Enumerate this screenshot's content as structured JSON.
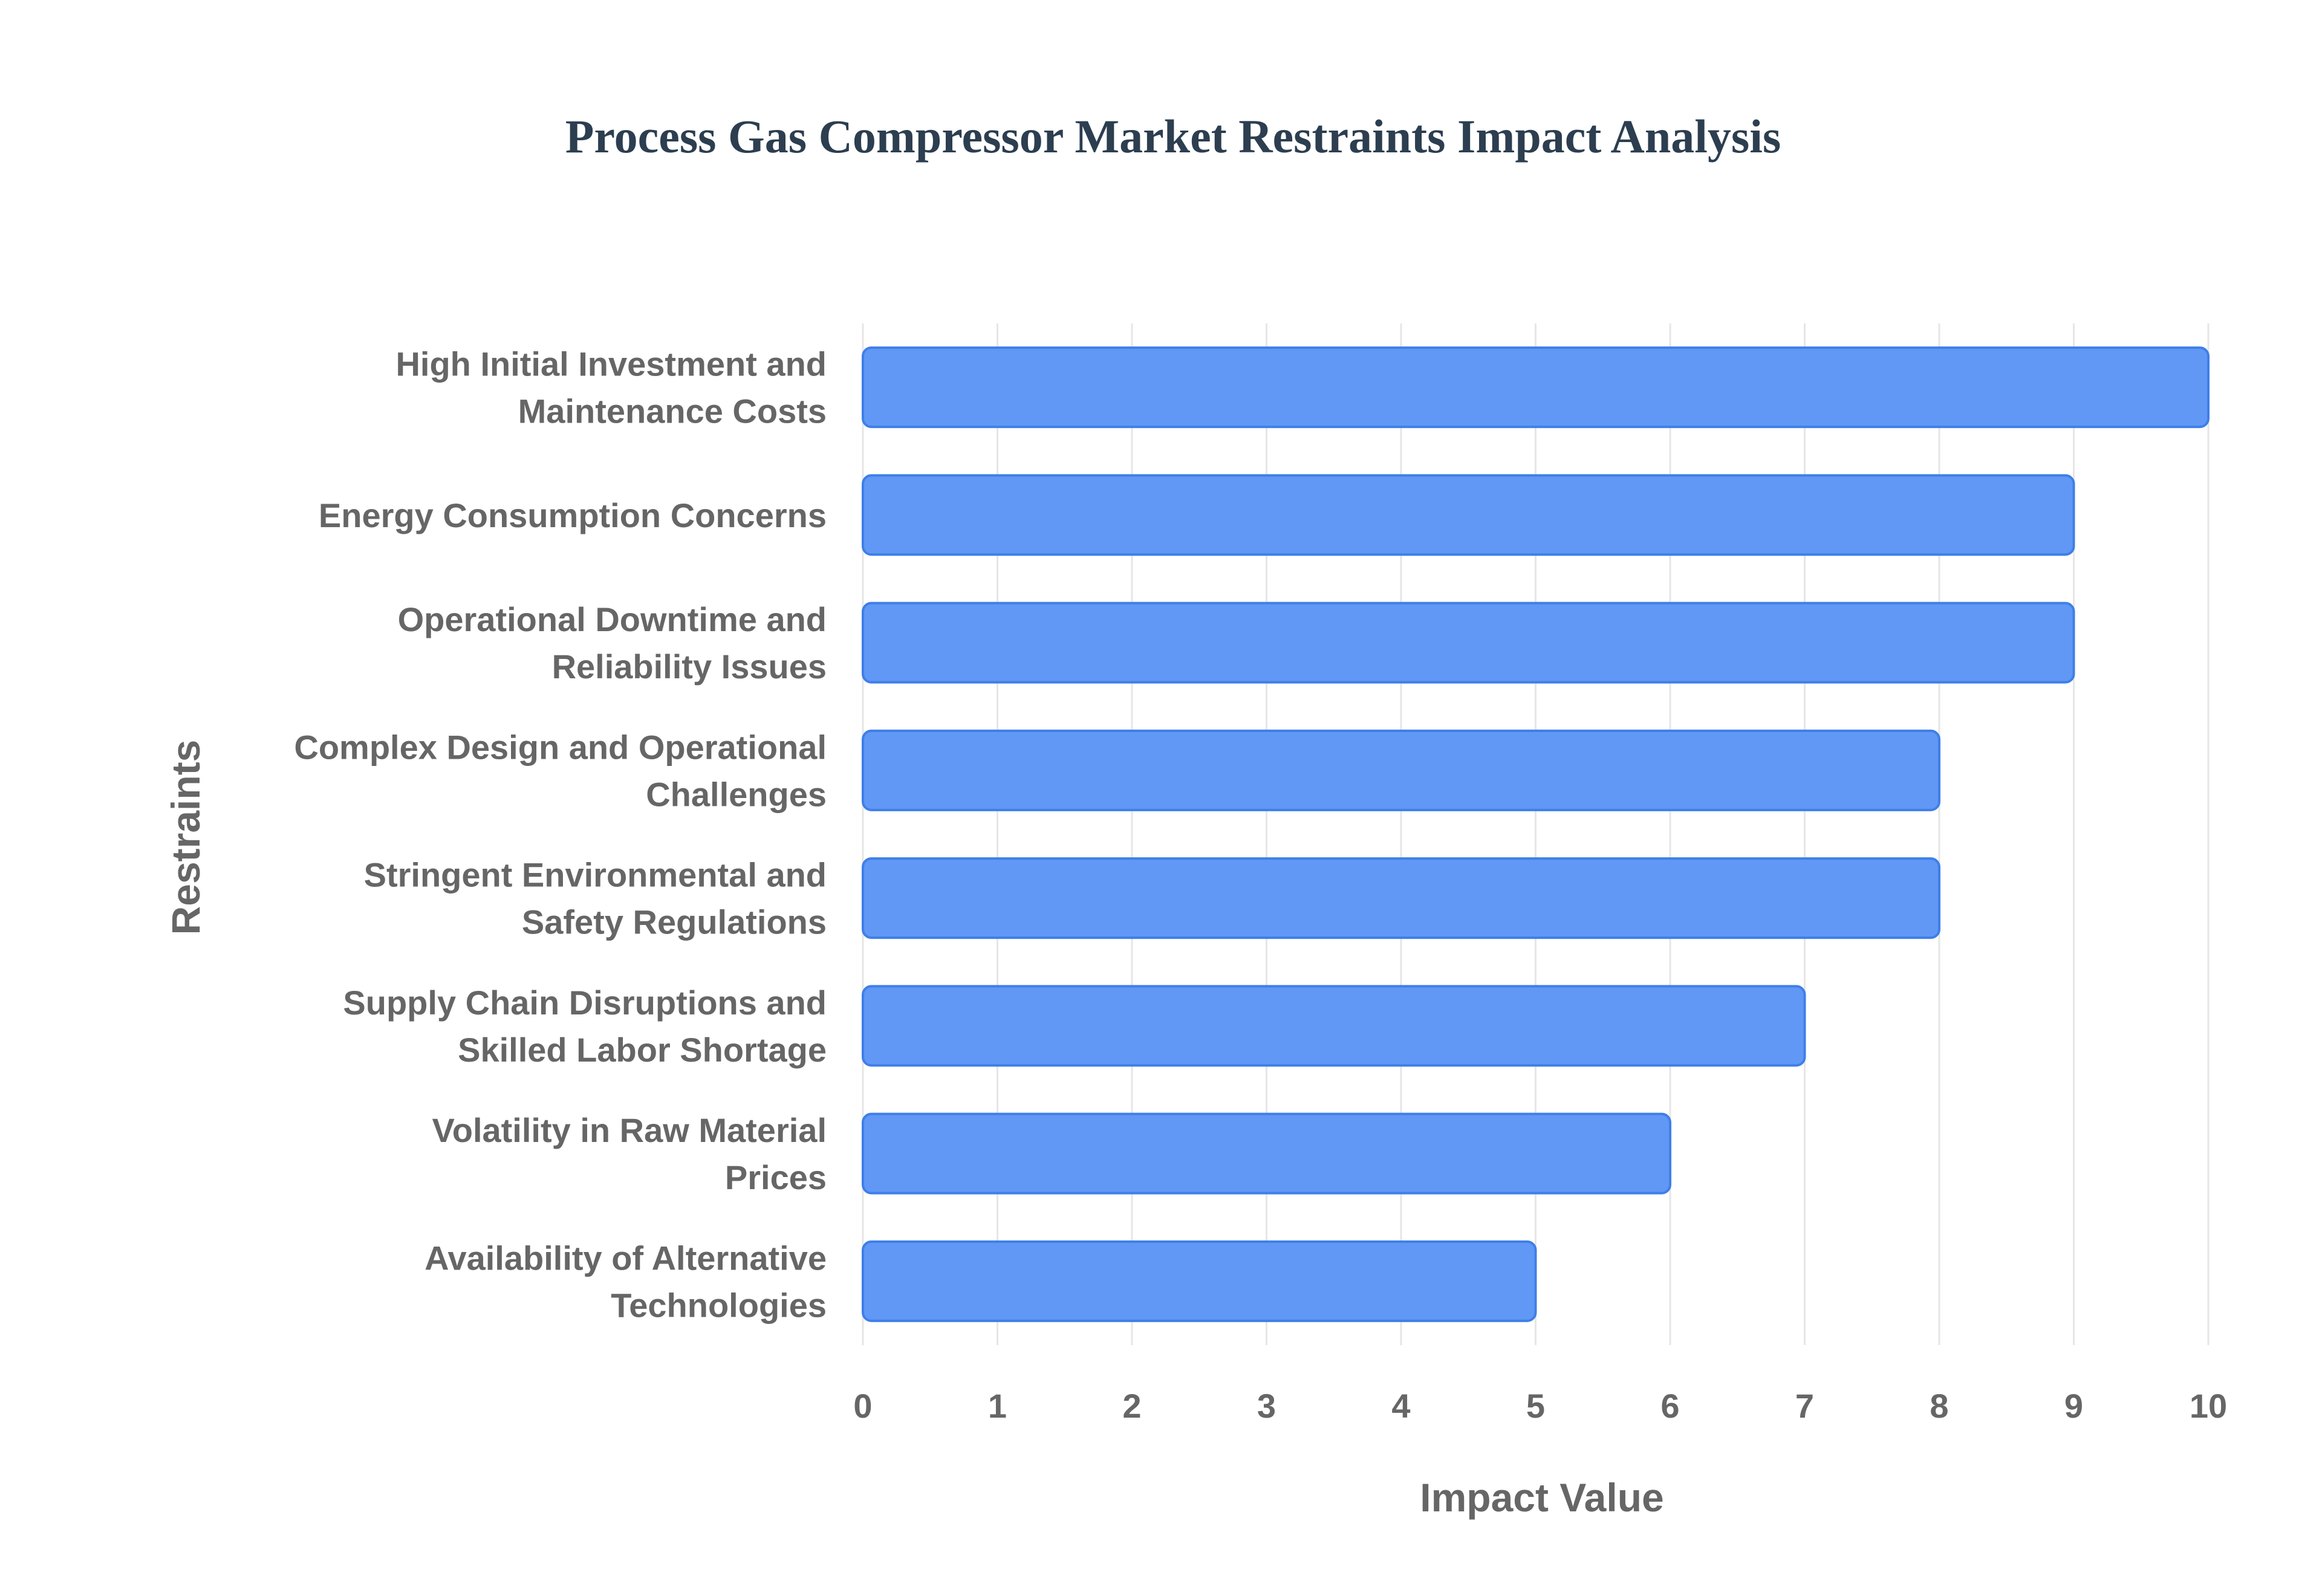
{
  "chart_data": {
    "type": "bar",
    "orientation": "horizontal",
    "title": "Process Gas Compressor Market Restraints Impact Analysis",
    "xlabel": "Impact Value",
    "ylabel": "Restraints",
    "xlim": [
      0,
      10
    ],
    "x_ticks": [
      0,
      1,
      2,
      3,
      4,
      5,
      6,
      7,
      8,
      9,
      10
    ],
    "grid": true,
    "legend": "none",
    "bar_color": "#6198f5",
    "bar_border_color": "#3f7fe8",
    "categories": [
      [
        "High Initial Investment and",
        "Maintenance Costs"
      ],
      [
        "Energy Consumption Concerns"
      ],
      [
        "Operational Downtime and",
        "Reliability Issues"
      ],
      [
        "Complex Design and Operational",
        "Challenges"
      ],
      [
        "Stringent Environmental and",
        "Safety Regulations"
      ],
      [
        "Supply Chain Disruptions and",
        "Skilled Labor Shortage"
      ],
      [
        "Volatility in Raw Material",
        "Prices"
      ],
      [
        "Availability of Alternative",
        "Technologies"
      ]
    ],
    "values": [
      10,
      9,
      9,
      8,
      8,
      7,
      6,
      5
    ]
  }
}
